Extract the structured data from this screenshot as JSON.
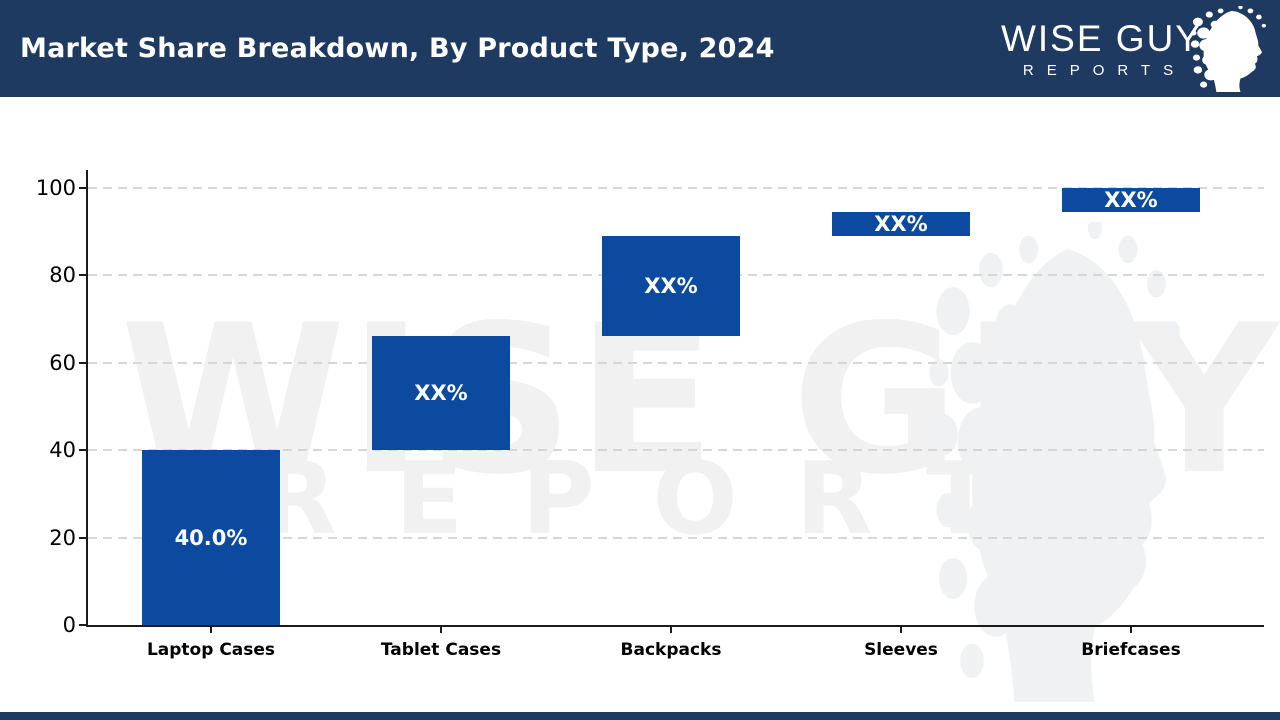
{
  "header": {
    "title": "Market Share Breakdown, By Product Type, 2024",
    "logo": {
      "line1": "WISE GUY",
      "line2": "REPORTS",
      "icon": "dotted-head-profile-icon"
    }
  },
  "watermark": {
    "line1": "WISE GUY",
    "line2": "REPORTS",
    "icon": "dotted-head-profile-icon"
  },
  "chart_data": {
    "type": "bar",
    "subtype": "waterfall",
    "title": "Market Share Breakdown, By Product Type, 2024",
    "categories": [
      "Laptop Cases",
      "Tablet Cases",
      "Backpacks",
      "Sleeves",
      "Briefcases"
    ],
    "segments": [
      {
        "category": "Laptop Cases",
        "start": 0,
        "end": 40,
        "value": 40,
        "label": "40.0%"
      },
      {
        "category": "Tablet Cases",
        "start": 40,
        "end": 66,
        "value": 26,
        "label": "XX%"
      },
      {
        "category": "Backpacks",
        "start": 66,
        "end": 89,
        "value": 23,
        "label": "XX%"
      },
      {
        "category": "Sleeves",
        "start": 89,
        "end": 94.5,
        "value": 5.5,
        "label": "XX%"
      },
      {
        "category": "Briefcases",
        "start": 94.5,
        "end": 100,
        "value": 5.5,
        "label": "XX%"
      }
    ],
    "yticks": [
      0,
      20,
      40,
      60,
      80,
      100
    ],
    "ylim": [
      0,
      104
    ],
    "xlabel": "",
    "ylabel": "",
    "grid": "horizontal-dashed",
    "legend": "none",
    "bar_color": "#0b4a9e",
    "bar_label_color": "#ffffff"
  },
  "colors": {
    "header_bg": "#1f3a60",
    "footer_bg": "#1f3a60",
    "axis": "#1a1a1a",
    "gridline": "#d6d6d6",
    "watermark": "#f0f1f3"
  }
}
